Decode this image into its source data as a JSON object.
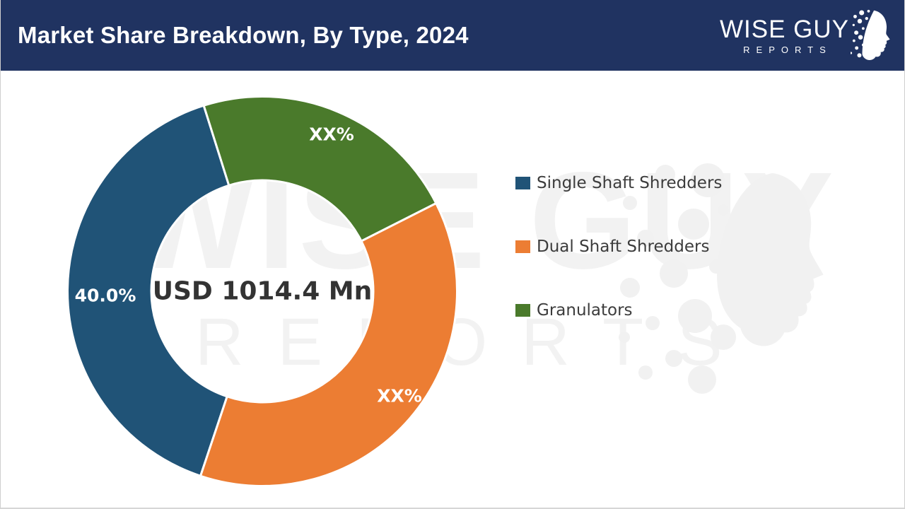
{
  "header": {
    "title": "Market Share Breakdown, By Type, 2024",
    "logo": {
      "line1": "WISE GUY",
      "line2": "REPORTS"
    }
  },
  "watermark": {
    "line1": "WISE GUY",
    "line2": "REPORTS"
  },
  "chart_data": {
    "type": "donut",
    "title": "Market Share Breakdown, By Type, 2024",
    "center_label": "USD 1014.4 Mn",
    "start_angle_deg": 198.5,
    "separator_color": "#ffffff",
    "legend_position": "right",
    "slices": [
      {
        "name": "Single Shaft Shredders",
        "value_pct": 40.0,
        "label": "40.0%",
        "color": "#205377"
      },
      {
        "name": "Granulators",
        "value_pct": 22.4,
        "label": "XX%",
        "color": "#4a7a2b"
      },
      {
        "name": "Dual Shaft Shredders",
        "value_pct": 37.6,
        "label": "XX%",
        "color": "#ec7d33"
      }
    ]
  },
  "legend": {
    "items": [
      {
        "label": "Single Shaft Shredders",
        "color": "#205377"
      },
      {
        "label": "Dual Shaft Shredders",
        "color": "#ec7d33"
      },
      {
        "label": "Granulators",
        "color": "#4a7a2b"
      }
    ]
  }
}
